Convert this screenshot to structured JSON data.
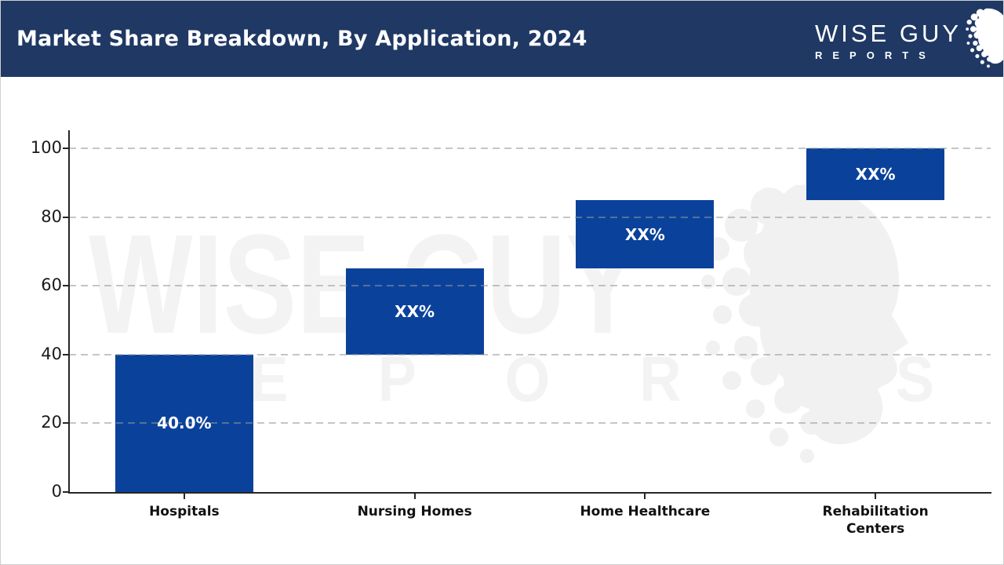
{
  "header": {
    "title": "Market Share Breakdown, By Application, 2024",
    "logo": {
      "line1": "WISE GUY",
      "line2": "REPORTS"
    }
  },
  "watermark": {
    "line1": "WISE GUY",
    "line2": "REPORTS"
  },
  "colors": {
    "header_bg": "#1f3864",
    "bar": "#0a429b",
    "grid_dash": "#b9b9b9",
    "watermark": "#f3f3f3",
    "axis": "#262626",
    "bar_label": "#ffffff",
    "frame_border": "#cfcfcf"
  },
  "chart_data": {
    "type": "bar",
    "subtype": "waterfall",
    "title": "Market Share Breakdown, By Application, 2024",
    "categories": [
      "Hospitals",
      "Nursing Homes",
      "Home Healthcare",
      "Rehabilitation Centers"
    ],
    "xtick_labels": [
      "Hospitals",
      "Nursing Homes",
      "Home Healthcare",
      "Rehabilitation\nCenters"
    ],
    "bars": [
      {
        "category": "Hospitals",
        "start": 0,
        "end": 40,
        "value": 40,
        "label": "40.0%"
      },
      {
        "category": "Nursing Homes",
        "start": 40,
        "end": 65,
        "value": 25,
        "label": "XX%"
      },
      {
        "category": "Home Healthcare",
        "start": 65,
        "end": 85,
        "value": 20,
        "label": "XX%"
      },
      {
        "category": "Rehabilitation Centers",
        "start": 85,
        "end": 100,
        "value": 15,
        "label": "XX%"
      }
    ],
    "yticks": [
      0,
      20,
      40,
      60,
      80,
      100
    ],
    "ylim": [
      0,
      105
    ],
    "xlabel": "",
    "ylabel": "",
    "grid": "horizontal-dashed-over-bars",
    "legend": "none",
    "bar_color": "#0a429b"
  }
}
